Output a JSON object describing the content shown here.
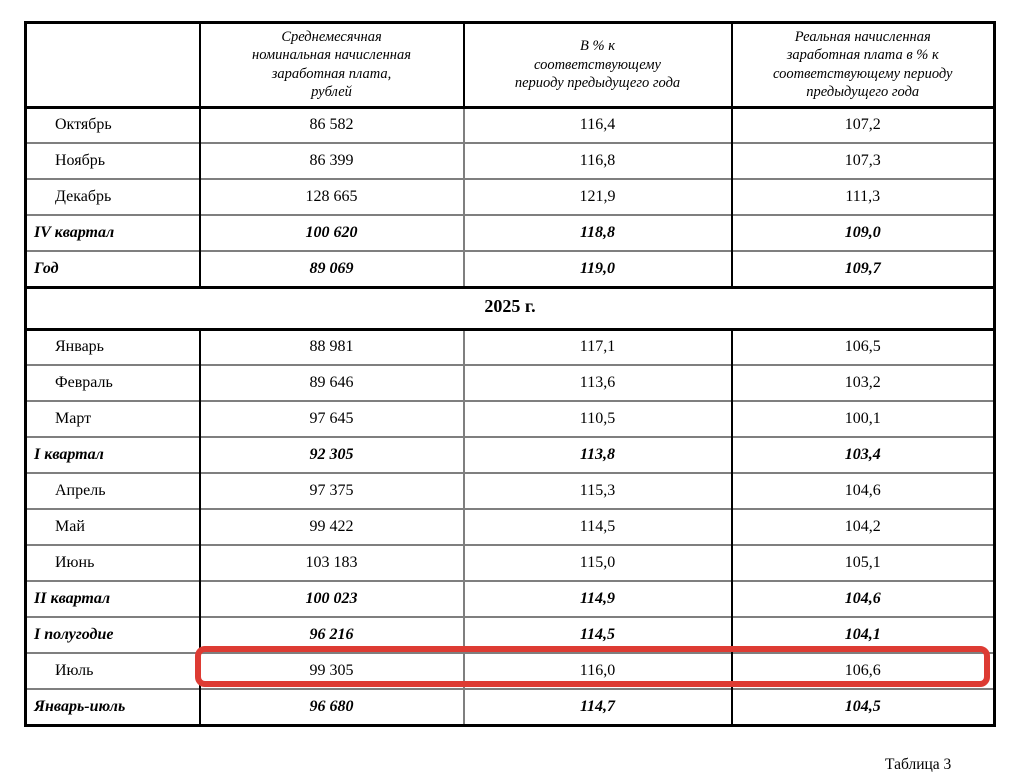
{
  "caption": "Таблица 3",
  "table": {
    "header": {
      "col1": "",
      "col2": "Среднемесячная\nноминальная начисленная\nзаработная плата,\nрублей",
      "col3": "В % к\nсоответствующему\nпериоду предыдущего года",
      "col4": "Реальная начисленная\nзаработная плата в % к\nсоответствующему периоду\nпредыдущего года"
    },
    "section_label": "2025 г.",
    "highlight_color": "#dd3b33",
    "rows": [
      {
        "type": "month",
        "label": "Октябрь",
        "nominal_wage_rub": "86 582",
        "pct_to_prev_year": "116,4",
        "real_wage_pct": "107,2"
      },
      {
        "type": "month",
        "label": "Ноябрь",
        "nominal_wage_rub": "86 399",
        "pct_to_prev_year": "116,8",
        "real_wage_pct": "107,3"
      },
      {
        "type": "month",
        "label": "Декабрь",
        "nominal_wage_rub": "128 665",
        "pct_to_prev_year": "121,9",
        "real_wage_pct": "111,3"
      },
      {
        "type": "summary",
        "label": "IV квартал",
        "nominal_wage_rub": "100 620",
        "pct_to_prev_year": "118,8",
        "real_wage_pct": "109,0"
      },
      {
        "type": "summary",
        "label": "Год",
        "nominal_wage_rub": "89 069",
        "pct_to_prev_year": "119,0",
        "real_wage_pct": "109,7"
      },
      {
        "type": "section",
        "label": "2025 г."
      },
      {
        "type": "month",
        "label": "Январь",
        "nominal_wage_rub": "88 981",
        "pct_to_prev_year": "117,1",
        "real_wage_pct": "106,5"
      },
      {
        "type": "month",
        "label": "Февраль",
        "nominal_wage_rub": "89 646",
        "pct_to_prev_year": "113,6",
        "real_wage_pct": "103,2"
      },
      {
        "type": "month",
        "label": "Март",
        "nominal_wage_rub": "97 645",
        "pct_to_prev_year": "110,5",
        "real_wage_pct": "100,1"
      },
      {
        "type": "summary",
        "label": "I квартал",
        "nominal_wage_rub": "92 305",
        "pct_to_prev_year": "113,8",
        "real_wage_pct": "103,4"
      },
      {
        "type": "month",
        "label": "Апрель",
        "nominal_wage_rub": "97 375",
        "pct_to_prev_year": "115,3",
        "real_wage_pct": "104,6"
      },
      {
        "type": "month",
        "label": "Май",
        "nominal_wage_rub": "99 422",
        "pct_to_prev_year": "114,5",
        "real_wage_pct": "104,2"
      },
      {
        "type": "month",
        "label": "Июнь",
        "nominal_wage_rub": "103 183",
        "pct_to_prev_year": "115,0",
        "real_wage_pct": "105,1"
      },
      {
        "type": "summary",
        "label": "II квартал",
        "nominal_wage_rub": "100 023",
        "pct_to_prev_year": "114,9",
        "real_wage_pct": "104,6"
      },
      {
        "type": "summary",
        "label": "I полугодие",
        "nominal_wage_rub": "96 216",
        "pct_to_prev_year": "114,5",
        "real_wage_pct": "104,1"
      },
      {
        "type": "month",
        "label": "Июль",
        "nominal_wage_rub": "99 305",
        "pct_to_prev_year": "116,0",
        "real_wage_pct": "106,6",
        "highlighted": true
      },
      {
        "type": "summary",
        "label": "Январь-июль",
        "nominal_wage_rub": "96 680",
        "pct_to_prev_year": "114,7",
        "real_wage_pct": "104,5"
      }
    ]
  }
}
